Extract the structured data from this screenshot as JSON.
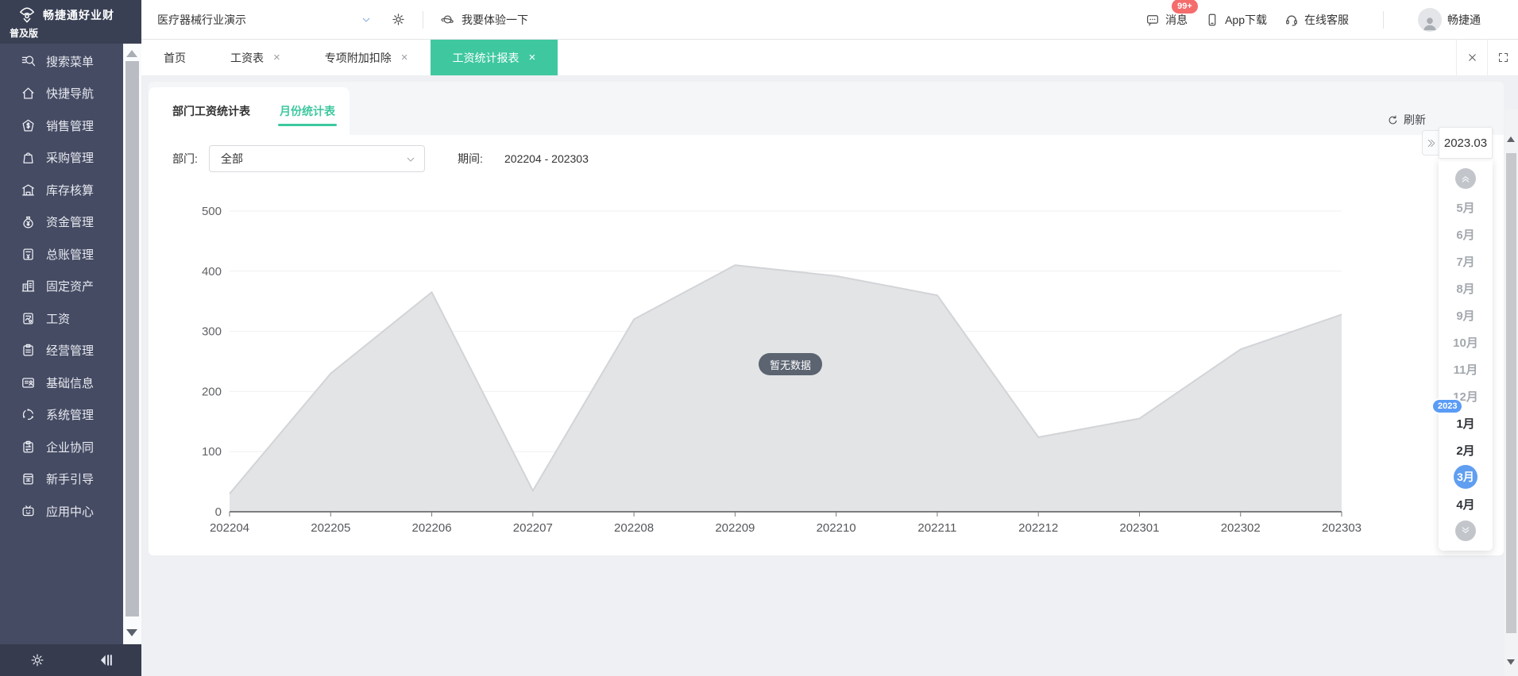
{
  "sidebar": {
    "logo_title": "畅捷通好业财",
    "edition": "普及版",
    "menu": [
      {
        "icon": "search",
        "label": "搜索菜单"
      },
      {
        "icon": "home",
        "label": "快捷导航"
      },
      {
        "icon": "sales",
        "label": "销售管理"
      },
      {
        "icon": "purchase",
        "label": "采购管理"
      },
      {
        "icon": "inventory",
        "label": "库存核算"
      },
      {
        "icon": "funds",
        "label": "资金管理"
      },
      {
        "icon": "ledger",
        "label": "总账管理"
      },
      {
        "icon": "assets",
        "label": "固定资产"
      },
      {
        "icon": "payroll",
        "label": "工资"
      },
      {
        "icon": "operations",
        "label": "经营管理"
      },
      {
        "icon": "basic-info",
        "label": "基础信息"
      },
      {
        "icon": "system",
        "label": "系统管理"
      },
      {
        "icon": "collab",
        "label": "企业协同"
      },
      {
        "icon": "guide",
        "label": "新手引导"
      },
      {
        "icon": "app-center",
        "label": "应用中心"
      }
    ]
  },
  "topbar": {
    "company": "医疗器械行业演示",
    "experience": "我要体验一下",
    "messages_label": "消息",
    "messages_badge": "99+",
    "app_download_label": "App下载",
    "online_service_label": "在线客服",
    "user_name": "畅捷通"
  },
  "tabbar": {
    "tabs": [
      {
        "label": "首页",
        "closable": false,
        "active": false
      },
      {
        "label": "工资表",
        "closable": true,
        "active": false
      },
      {
        "label": "专项附加扣除",
        "closable": true,
        "active": false
      },
      {
        "label": "工资统计报表",
        "closable": true,
        "active": true
      }
    ]
  },
  "report": {
    "subtabs": [
      {
        "label": "部门工资统计表",
        "active": false
      },
      {
        "label": "月份统计表",
        "active": true
      }
    ],
    "refresh_label": "刷新",
    "dept_label": "部门:",
    "dept_value": "全部",
    "period_label": "期间:",
    "period_value": "202204 - 202303"
  },
  "month_picker": {
    "current": "2023.03",
    "year_badge": "2023",
    "months": [
      {
        "label": "5月",
        "state": "muted"
      },
      {
        "label": "6月",
        "state": "muted"
      },
      {
        "label": "7月",
        "state": "muted"
      },
      {
        "label": "8月",
        "state": "muted"
      },
      {
        "label": "9月",
        "state": "muted"
      },
      {
        "label": "10月",
        "state": "muted"
      },
      {
        "label": "11月",
        "state": "muted"
      },
      {
        "label": "12月",
        "state": "muted"
      },
      {
        "label": "1月",
        "state": "normal"
      },
      {
        "label": "2月",
        "state": "normal"
      },
      {
        "label": "3月",
        "state": "selected"
      },
      {
        "label": "4月",
        "state": "normal"
      }
    ]
  },
  "chart_data": {
    "type": "area",
    "title": "",
    "xlabel": "",
    "ylabel": "",
    "x": [
      "202204",
      "202205",
      "202206",
      "202207",
      "202208",
      "202209",
      "202210",
      "202211",
      "202212",
      "202301",
      "202302",
      "202303"
    ],
    "values": [
      30,
      230,
      365,
      35,
      320,
      410,
      392,
      360,
      124,
      155,
      270,
      328
    ],
    "ylim": [
      0,
      500
    ],
    "yticks": [
      0,
      100,
      200,
      300,
      400,
      500
    ],
    "grid": "horizontal",
    "legend": "none",
    "no_data_label": "暂无数据"
  },
  "colors": {
    "accent_green": "#3fc8a0",
    "accent_blue": "#5f9ef0",
    "badge_red": "#f56c6c",
    "sidebar_bg": "#454b63",
    "area_fill": "#e3e4e6",
    "area_line": "#d2d4d7",
    "no_data_bg": "#5b6470"
  }
}
